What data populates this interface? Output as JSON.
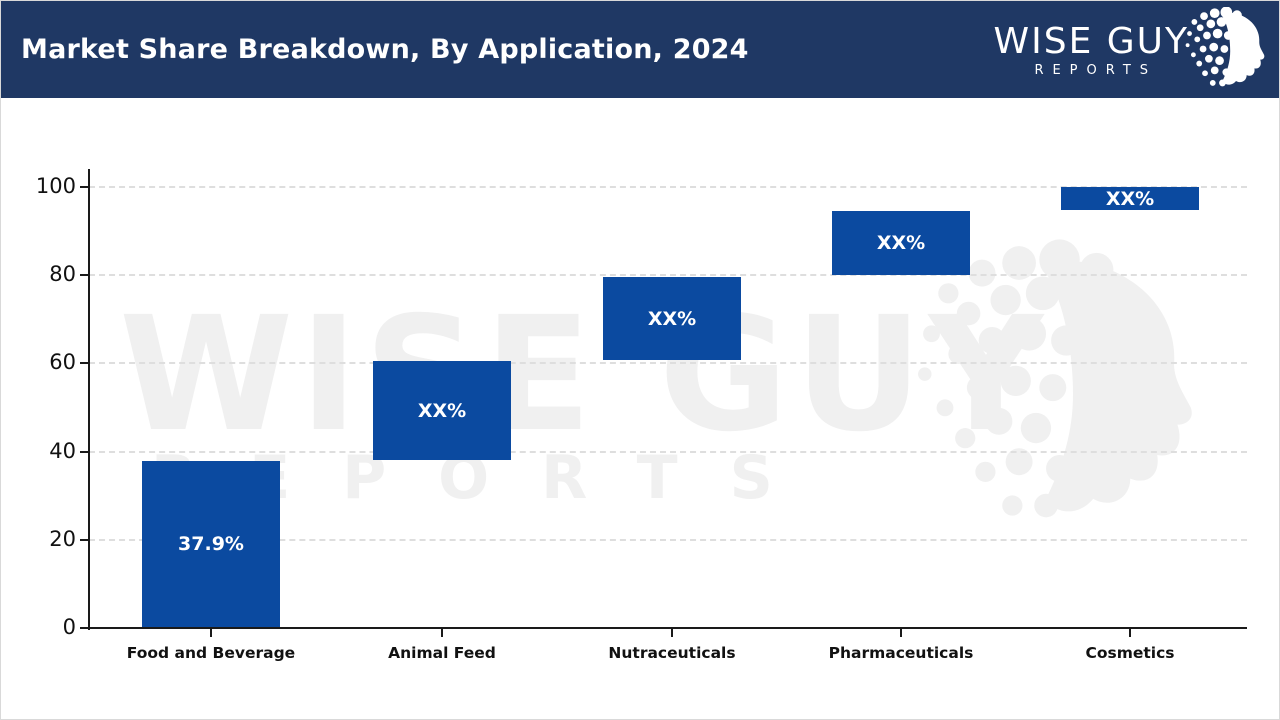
{
  "header": {
    "title": "Market Share Breakdown, By Application, 2024",
    "logo": {
      "line1": "WISE GUY",
      "line2": "REPORTS"
    }
  },
  "watermark": {
    "line1": "WISE GUY",
    "line2": "REPORTS"
  },
  "chart_data": {
    "type": "bar",
    "subtype": "waterfall-floating-bars",
    "title": "Market Share Breakdown, By Application, 2024",
    "xlabel": "",
    "ylabel": "",
    "categories": [
      "Food and Beverage",
      "Animal Feed",
      "Nutraceuticals",
      "Pharmaceuticals",
      "Cosmetics"
    ],
    "series": [
      {
        "name": "Market Share (%)",
        "segments": [
          {
            "category": "Food and Beverage",
            "start": 0,
            "end": 37.9,
            "label": "37.9%"
          },
          {
            "category": "Animal Feed",
            "start": 38.1,
            "end": 60.5,
            "label": "XX%"
          },
          {
            "category": "Nutraceuticals",
            "start": 60.7,
            "end": 79.5,
            "label": "XX%"
          },
          {
            "category": "Pharmaceuticals",
            "start": 80.0,
            "end": 94.5,
            "label": "XX%"
          },
          {
            "category": "Cosmetics",
            "start": 94.7,
            "end": 100.0,
            "label": "XX%"
          }
        ]
      }
    ],
    "yticks": [
      0,
      20,
      40,
      60,
      80,
      100
    ],
    "ylim": [
      0,
      105
    ],
    "grid": "horizontal-dashed",
    "legend": "none",
    "colors": {
      "bar": "#0B4AA0",
      "bar_label": "#ffffff",
      "header_bg": "#1F3864",
      "axis": "#1a1a1a",
      "grid": "#dedede",
      "watermark": "#f0f0f0"
    }
  }
}
